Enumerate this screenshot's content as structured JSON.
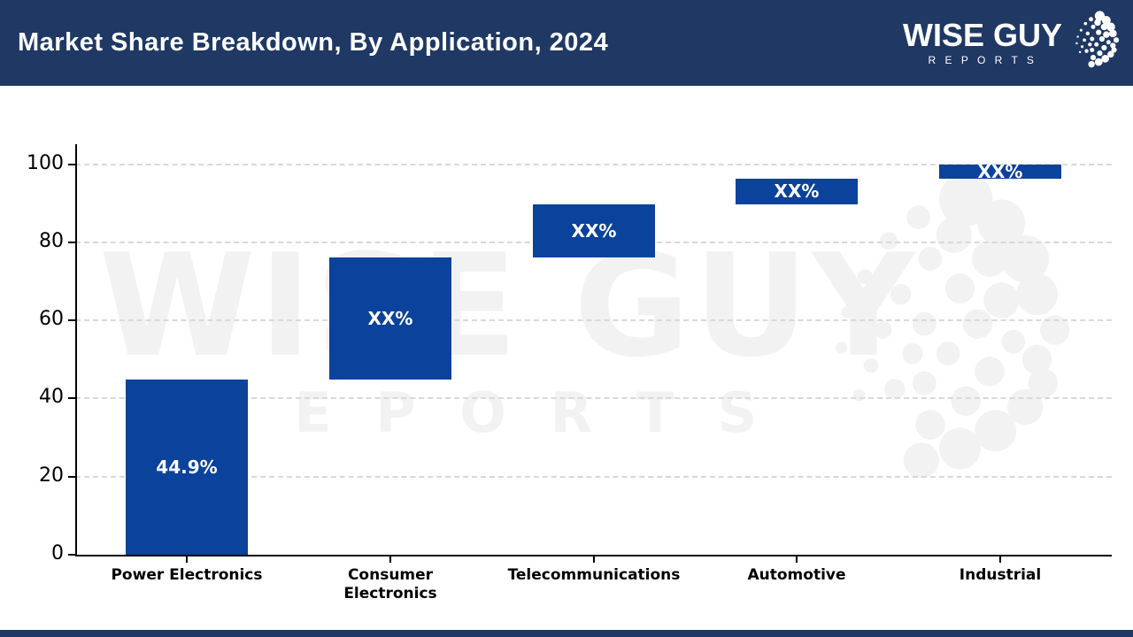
{
  "header": {
    "title": "Market Share Breakdown, By Application, 2024",
    "logo": {
      "line1": "WISE GUY",
      "line2": "R E P O R T S"
    }
  },
  "watermark": {
    "line1": "WISE GUY",
    "line2": "R E P O R T S"
  },
  "chart_data": {
    "type": "bar",
    "subtype": "waterfall",
    "title": "Market Share Breakdown, By Application, 2024",
    "categories": [
      "Power Electronics",
      "Consumer\nElectronics",
      "Telecommunications",
      "Automotive",
      "Industrial"
    ],
    "series": [
      {
        "name": "Market Share (%)",
        "segments": [
          {
            "category": "Power Electronics",
            "start": 0,
            "end": 44.9,
            "label": "44.9%"
          },
          {
            "category": "Consumer Electronics",
            "start": 44.9,
            "end": 76.1,
            "label": "XX%"
          },
          {
            "category": "Telecommunications",
            "start": 76.1,
            "end": 89.7,
            "label": "XX%"
          },
          {
            "category": "Automotive",
            "start": 89.7,
            "end": 96.3,
            "label": "XX%"
          },
          {
            "category": "Industrial",
            "start": 96.3,
            "end": 100.0,
            "label": "XX%"
          }
        ]
      }
    ],
    "xlabel": "",
    "ylabel": "",
    "yticks": [
      0,
      20,
      40,
      60,
      80,
      100
    ],
    "ylim": [
      0,
      106
    ],
    "grid": "horizontal-dashed",
    "legend": "none",
    "bar_color": "#0b429b"
  },
  "colors": {
    "header_bg": "#1f3864",
    "footer_bg": "#1f3864",
    "bar": "#0b429b",
    "bar_label": "#ffffff",
    "axis": "#000000",
    "grid": "#d9d9d9",
    "watermark": "#f2f2f3"
  }
}
